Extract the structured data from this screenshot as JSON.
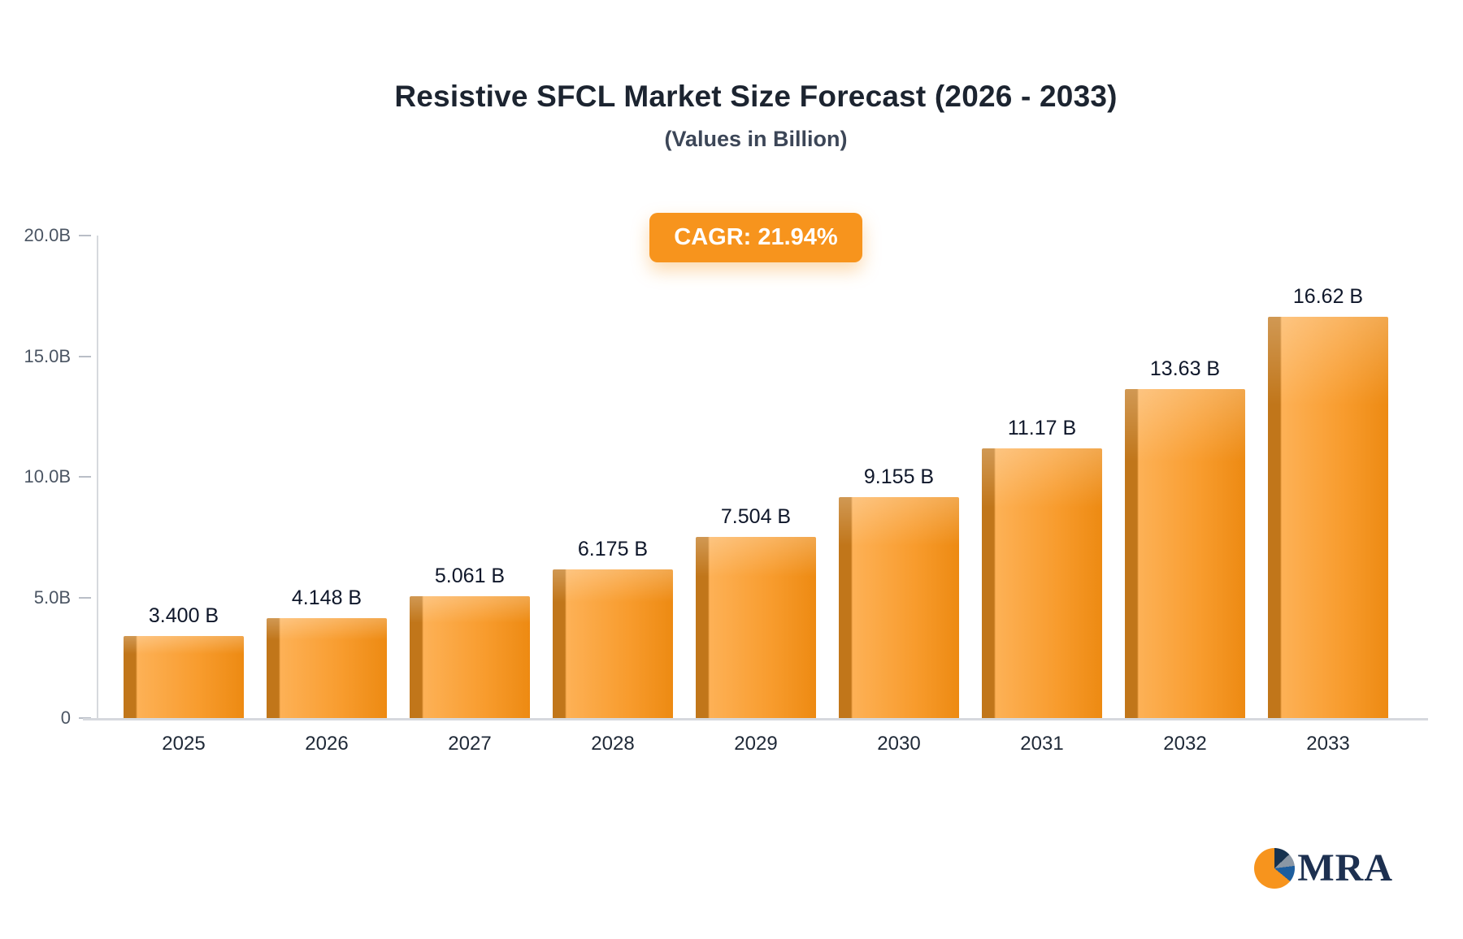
{
  "header": {
    "title": "Resistive SFCL Market Size Forecast (2026 - 2033)",
    "subtitle": "(Values in Billion)"
  },
  "badge": {
    "label": "CAGR: 21.94%"
  },
  "chart_data": {
    "type": "bar",
    "title": "Resistive SFCL Market Size Forecast (2026 - 2033)",
    "subtitle": "(Values in Billion)",
    "annotation": "CAGR: 21.94%",
    "categories": [
      "2025",
      "2026",
      "2027",
      "2028",
      "2029",
      "2030",
      "2031",
      "2032",
      "2033"
    ],
    "values": [
      3.4,
      4.148,
      5.061,
      6.175,
      7.504,
      9.155,
      11.17,
      13.63,
      16.62
    ],
    "value_labels": [
      "3.400 B",
      "4.148 B",
      "5.061 B",
      "6.175 B",
      "7.504 B",
      "9.155 B",
      "11.17 B",
      "13.63 B",
      "16.62 B"
    ],
    "xlabel": "",
    "ylabel": "",
    "ylim": [
      0,
      20
    ],
    "yticks": [
      0,
      5,
      10,
      15,
      20
    ],
    "ytick_labels": [
      "0",
      "5.0B",
      "10.0B",
      "15.0B",
      "20.0B"
    ],
    "grid": false,
    "legend": false,
    "unit": "Billion"
  },
  "colors": {
    "accent": "#f7941d",
    "bar_side": "#c1761a",
    "bar_light": "#fdb156",
    "bar_mid": "#f89c2e",
    "bar_dark": "#ed8a12",
    "axis": "#d6d9de",
    "title_text": "#1c2430",
    "logo_navy": "#1d3050"
  },
  "logo": {
    "text": "MRA",
    "icon": "pie-chart-icon"
  }
}
